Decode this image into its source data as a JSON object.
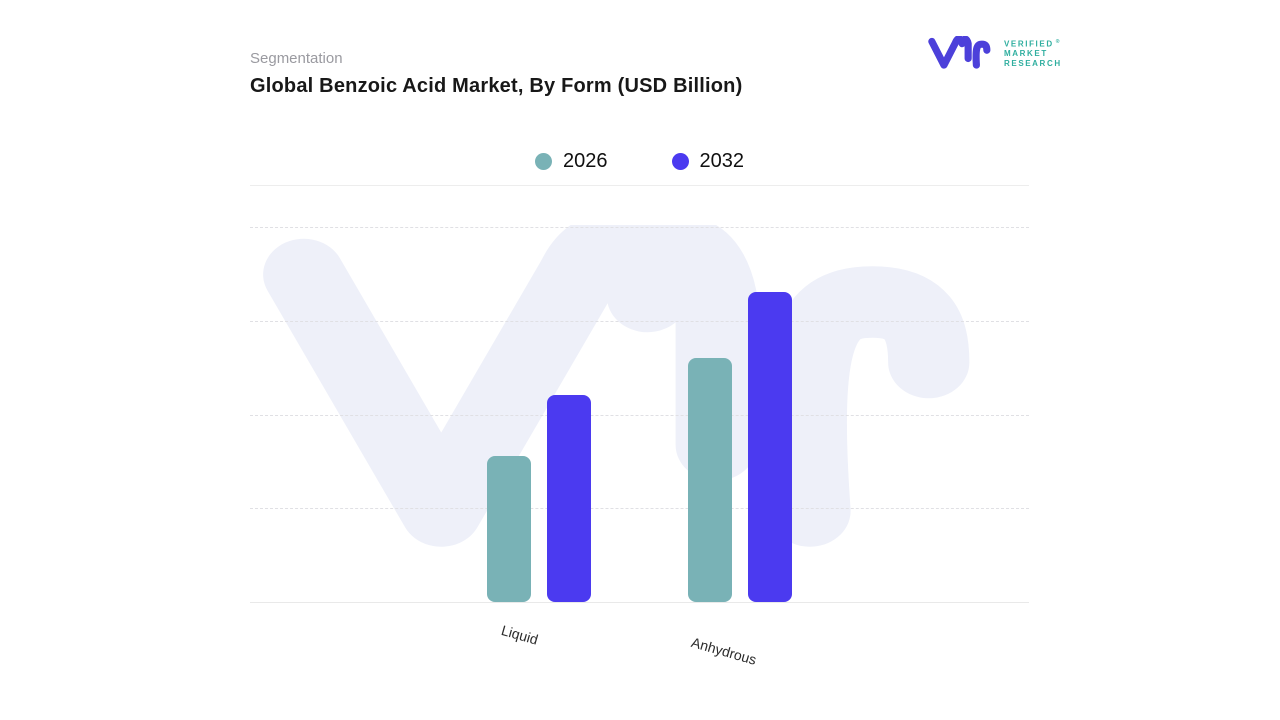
{
  "header": {
    "eyebrow": "Segmentation",
    "title": "Global Benzoic Acid Market, By Form (USD Billion)"
  },
  "logo": {
    "lines": [
      "VERIFIED",
      "MARKET",
      "RESEARCH"
    ],
    "registered": "®",
    "mark_color": "#4c40da",
    "text_color": "#2fae9f"
  },
  "watermark": {
    "icon": "vmr-monogram",
    "color": "#eef0f9"
  },
  "chart_data": {
    "type": "bar",
    "title": "Global Benzoic Acid Market, By Form (USD Billion)",
    "categories": [
      "Liquid",
      "Anhydrous"
    ],
    "series": [
      {
        "name": "2026",
        "color": "#79b2b6",
        "values": [
          1.55,
          2.6
        ]
      },
      {
        "name": "2032",
        "color": "#4b3af0",
        "values": [
          2.2,
          3.3
        ]
      }
    ],
    "xlabel": "",
    "ylabel": "",
    "ylim": [
      0,
      4
    ],
    "value_axis_labels_visible": false,
    "units_note": "no numeric axis labels shown; values estimated in gridline steps",
    "gridlines": "horizontal-dashed",
    "legend_position": "top-center"
  }
}
